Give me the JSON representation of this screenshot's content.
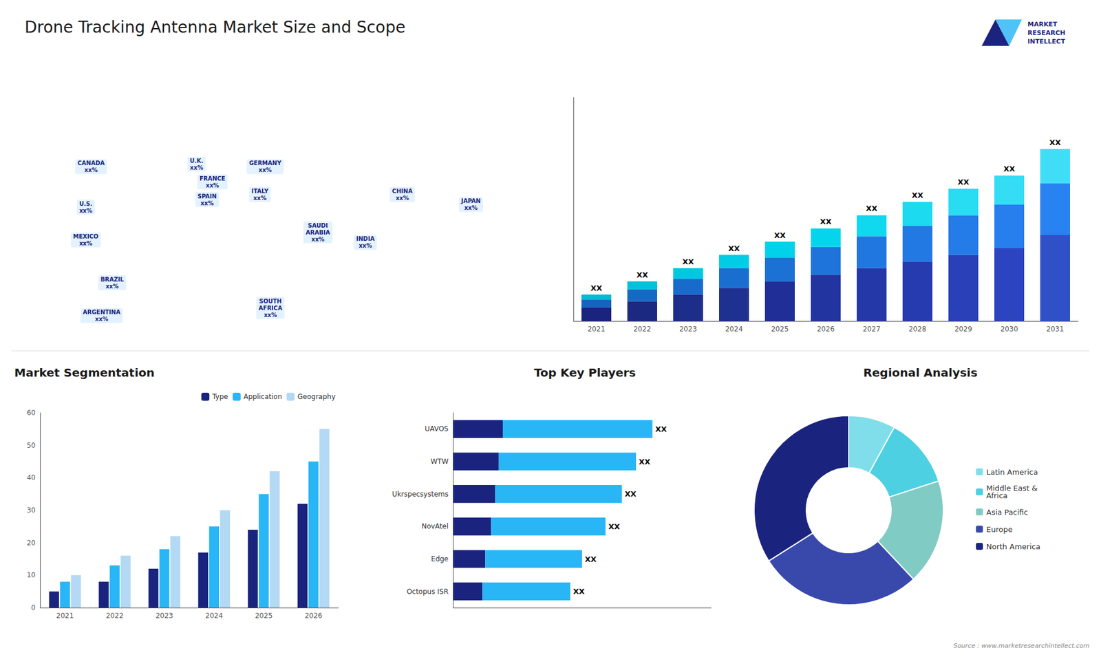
{
  "title": "Drone Tracking Antenna Market Size and Scope",
  "annotations": [
    "MARKET\nRESEARCH\nINTELLECT",
    "Source : www.marketresearchintellect.com"
  ],
  "chart_data": [
    {
      "type": "map",
      "annotations": [
        "CANADA\nxx%",
        "U.S.\nxx%",
        "MEXICO\nxx%",
        "BRAZIL\nxx%",
        "ARGENTINA\nxx%",
        "U.K.\nxx%",
        "FRANCE\nxx%",
        "SPAIN\nxx%",
        "GERMANY\nxx%",
        "ITALY\nxx%",
        "SAUDI\nARABIA\nxx%",
        "SOUTH\nAFRICA\nxx%",
        "CHINA\nxx%",
        "INDIA\nxx%",
        "JAPAN\nxx%"
      ]
    },
    {
      "type": "bar",
      "categories": [
        "2021",
        "2022",
        "2023",
        "2024",
        "2025",
        "2026",
        "2027",
        "2028",
        "2029",
        "2030",
        "2031"
      ],
      "stacked": true,
      "tick_labels": "x",
      "ylim": [
        0,
        16.9
      ],
      "series": [
        {
          "colors": [
            "#1a237e",
            "#1c2980",
            "#1d2d8a",
            "#1e3090",
            "#202e98",
            "#2234a0",
            "#2438a8",
            "#273bb0",
            "#2940b8",
            "#2c44c0",
            "#3050c8"
          ],
          "values": [
            1,
            1.5,
            2,
            2.5,
            3,
            3.5,
            4,
            4.5,
            5,
            5.5,
            6.5
          ]
        },
        {
          "colors": [
            "#1565c0",
            "#1668c5",
            "#186bcb",
            "#1a6ed0",
            "#1c71d5",
            "#1e74da",
            "#2077df",
            "#2279e3",
            "#247ce8",
            "#267fed",
            "#2882f2"
          ],
          "values": [
            0.6,
            0.9,
            1.2,
            1.5,
            1.8,
            2.1,
            2.4,
            2.7,
            3.0,
            3.3,
            3.9
          ]
        },
        {
          "colors": [
            "#00bcd4",
            "#00c2da",
            "#00c8e0",
            "#00cde5",
            "#00d2ea",
            "#04d5ec",
            "#10d8ee",
            "#1cdaf0",
            "#28dcf2",
            "#34ddf4",
            "#40def6"
          ],
          "values": [
            0.4,
            0.6,
            0.8,
            1.0,
            1.2,
            1.4,
            1.6,
            1.8,
            2.0,
            2.2,
            2.6
          ],
          "value_labels": [
            "XX",
            "XX",
            "XX",
            "XX",
            "XX",
            "XX",
            "XX",
            "XX",
            "XX",
            "XX",
            "XX"
          ]
        }
      ]
    },
    {
      "type": "bar",
      "title": "Market Segmentation",
      "categories": [
        "2021",
        "2022",
        "2023",
        "2024",
        "2025",
        "2026"
      ],
      "ylim": [
        0,
        60
      ],
      "yticks": [
        0,
        10,
        20,
        30,
        40,
        50,
        60
      ],
      "grid": false,
      "legend": "upper right",
      "series": [
        {
          "name": "Type",
          "color": "#1a237e",
          "values": [
            5,
            8,
            12,
            17,
            24,
            32
          ]
        },
        {
          "name": "Application",
          "color": "#29b6f6",
          "values": [
            8,
            13,
            18,
            25,
            35,
            45
          ]
        },
        {
          "name": "Geography",
          "color": "#b3d9f5",
          "values": [
            10,
            16,
            22,
            30,
            42,
            55
          ]
        }
      ]
    },
    {
      "type": "bar",
      "title": "Top Key Players",
      "orientation": "horizontal",
      "stacked": true,
      "tick_labels": "y",
      "xlim": [
        0,
        1.1
      ],
      "categories": [
        "UAVOS",
        "WTW",
        "Ukrspecsystems",
        "NovAtel",
        "Edge",
        "Octopus ISR"
      ],
      "series": [
        {
          "color": "#1a237e",
          "values": [
            0.2125,
            0.195,
            0.18,
            0.1625,
            0.1375,
            0.125
          ]
        },
        {
          "color": "#29b6f6",
          "values": [
            0.6375,
            0.585,
            0.54,
            0.4875,
            0.4125,
            0.375
          ],
          "value_labels": [
            "XX",
            "XX",
            "XX",
            "XX",
            "XX",
            "XX"
          ]
        }
      ]
    },
    {
      "type": "donut",
      "title": "Regional Analysis",
      "legend": "right",
      "categories": [
        "Latin America",
        "Middle East &\nAfrica",
        "Asia Pacific",
        "Europe",
        "North America"
      ],
      "colors": [
        "#80deea",
        "#4dd0e1",
        "#80cbc4",
        "#3949ab",
        "#1a237e"
      ],
      "values": [
        8,
        12,
        18,
        28,
        34
      ]
    }
  ]
}
